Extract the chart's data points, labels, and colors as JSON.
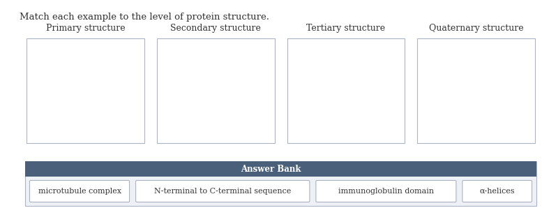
{
  "title": "Match each example to the level of protein structure.",
  "title_fontsize": 9.5,
  "background_color": "#ffffff",
  "columns": [
    "Primary structure",
    "Secondary structure",
    "Tertiary structure",
    "Quaternary structure"
  ],
  "col_label_fontsize": 9,
  "box_color": "#ffffff",
  "box_edge_color": "#aab4c4",
  "answer_bank_bg": "#4a607a",
  "answer_bank_text": "Answer Bank",
  "answer_bank_text_color": "#ffffff",
  "answer_bank_fontsize": 8.5,
  "answer_items": [
    "microtubule complex",
    "N-terminal to C-terminal sequence",
    "immunoglobulin domain",
    "α-helices"
  ],
  "answer_item_fontsize": 8,
  "answer_item_box_color": "#ffffff",
  "answer_item_box_edge_color": "#aab4c4",
  "answer_section_bg": "#edf0f5",
  "outer_border_color": "#aab4c4",
  "fig_width": 7.77,
  "fig_height": 2.98,
  "dpi": 100
}
